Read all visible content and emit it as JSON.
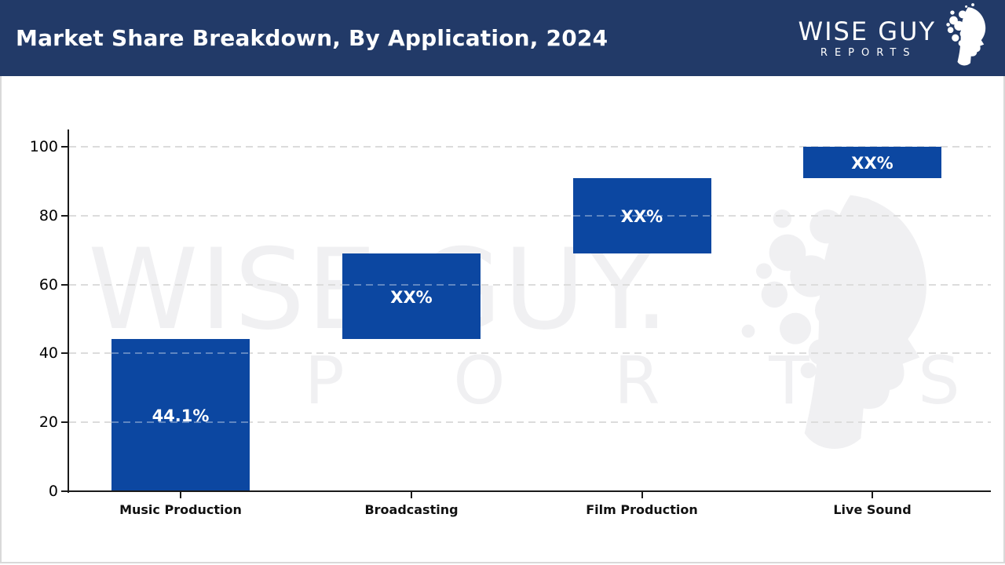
{
  "header": {
    "title": "Market Share Breakdown, By Application, 2024",
    "logo": {
      "line1": "WISE GUY",
      "line2": "REPORTS"
    }
  },
  "watermark": {
    "line1": "WISE GUY.",
    "line2": "P O R T S"
  },
  "chart_data": {
    "type": "bar",
    "subtype": "floating-waterfall",
    "title": "Market Share Breakdown, By Application, 2024",
    "categories": [
      "Music Production",
      "Broadcasting",
      "Film Production",
      "Live Sound"
    ],
    "segments": [
      {
        "category": "Music Production",
        "start": 0,
        "end": 44.1,
        "label": "44.1%"
      },
      {
        "category": "Broadcasting",
        "start": 44.1,
        "end": 69,
        "label": "XX%"
      },
      {
        "category": "Film Production",
        "start": 69,
        "end": 91,
        "label": "XX%"
      },
      {
        "category": "Live Sound",
        "start": 91,
        "end": 100,
        "label": "XX%"
      }
    ],
    "xlabel": "",
    "ylabel": "",
    "yticks": [
      0,
      20,
      40,
      60,
      80,
      100
    ],
    "ylim": [
      0,
      105
    ],
    "grid": "horizontal-dashed",
    "legend": "none",
    "bar_color": "#0C47A1"
  },
  "colors": {
    "header_bg": "#223A68",
    "bar": "#0C47A1",
    "watermark": "#F0F0F2",
    "grid": "#DCDCDC",
    "axis": "#1A1A1A",
    "frame": "#D9D9D9"
  }
}
